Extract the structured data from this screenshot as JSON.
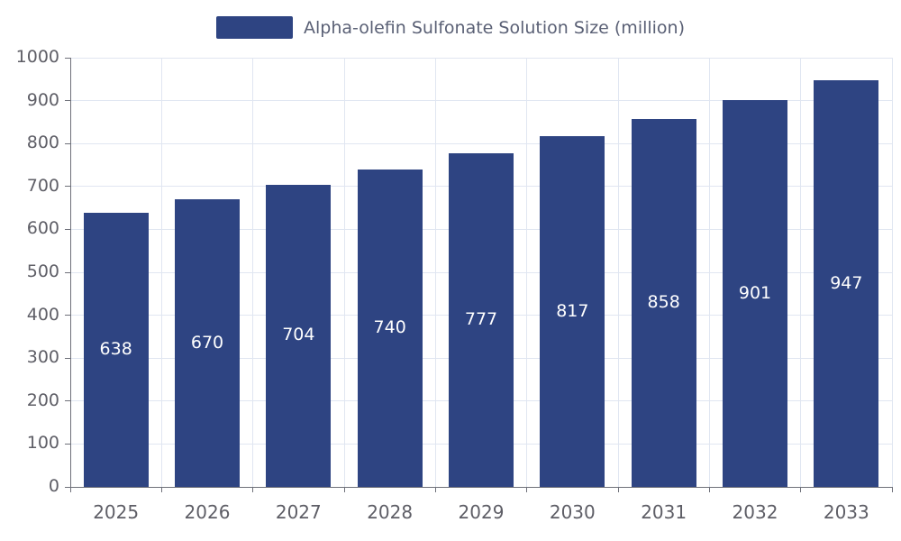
{
  "legend": {
    "label": "Alpha-olefin Sulfonate Solution Size (million)"
  },
  "chart_data": {
    "type": "bar",
    "title": "Alpha-olefin Sulfonate Solution Size (million)",
    "categories": [
      "2025",
      "2026",
      "2027",
      "2028",
      "2029",
      "2030",
      "2031",
      "2032",
      "2033"
    ],
    "values": [
      638,
      670,
      704,
      740,
      777,
      817,
      858,
      901,
      947
    ],
    "xlabel": "",
    "ylabel": "",
    "ylim": [
      0,
      1000
    ],
    "ytick_step": 100,
    "grid": true,
    "legend_position": "top",
    "value_label_position": "inside-center"
  },
  "colors": {
    "bar": "#2e4482",
    "value_label": "#ffffff",
    "gridline": "#e0e6f1",
    "axis": "#6e7079",
    "tick_label": "#5e5e66",
    "legend_text": "#5a6075",
    "background": "#ffffff"
  }
}
